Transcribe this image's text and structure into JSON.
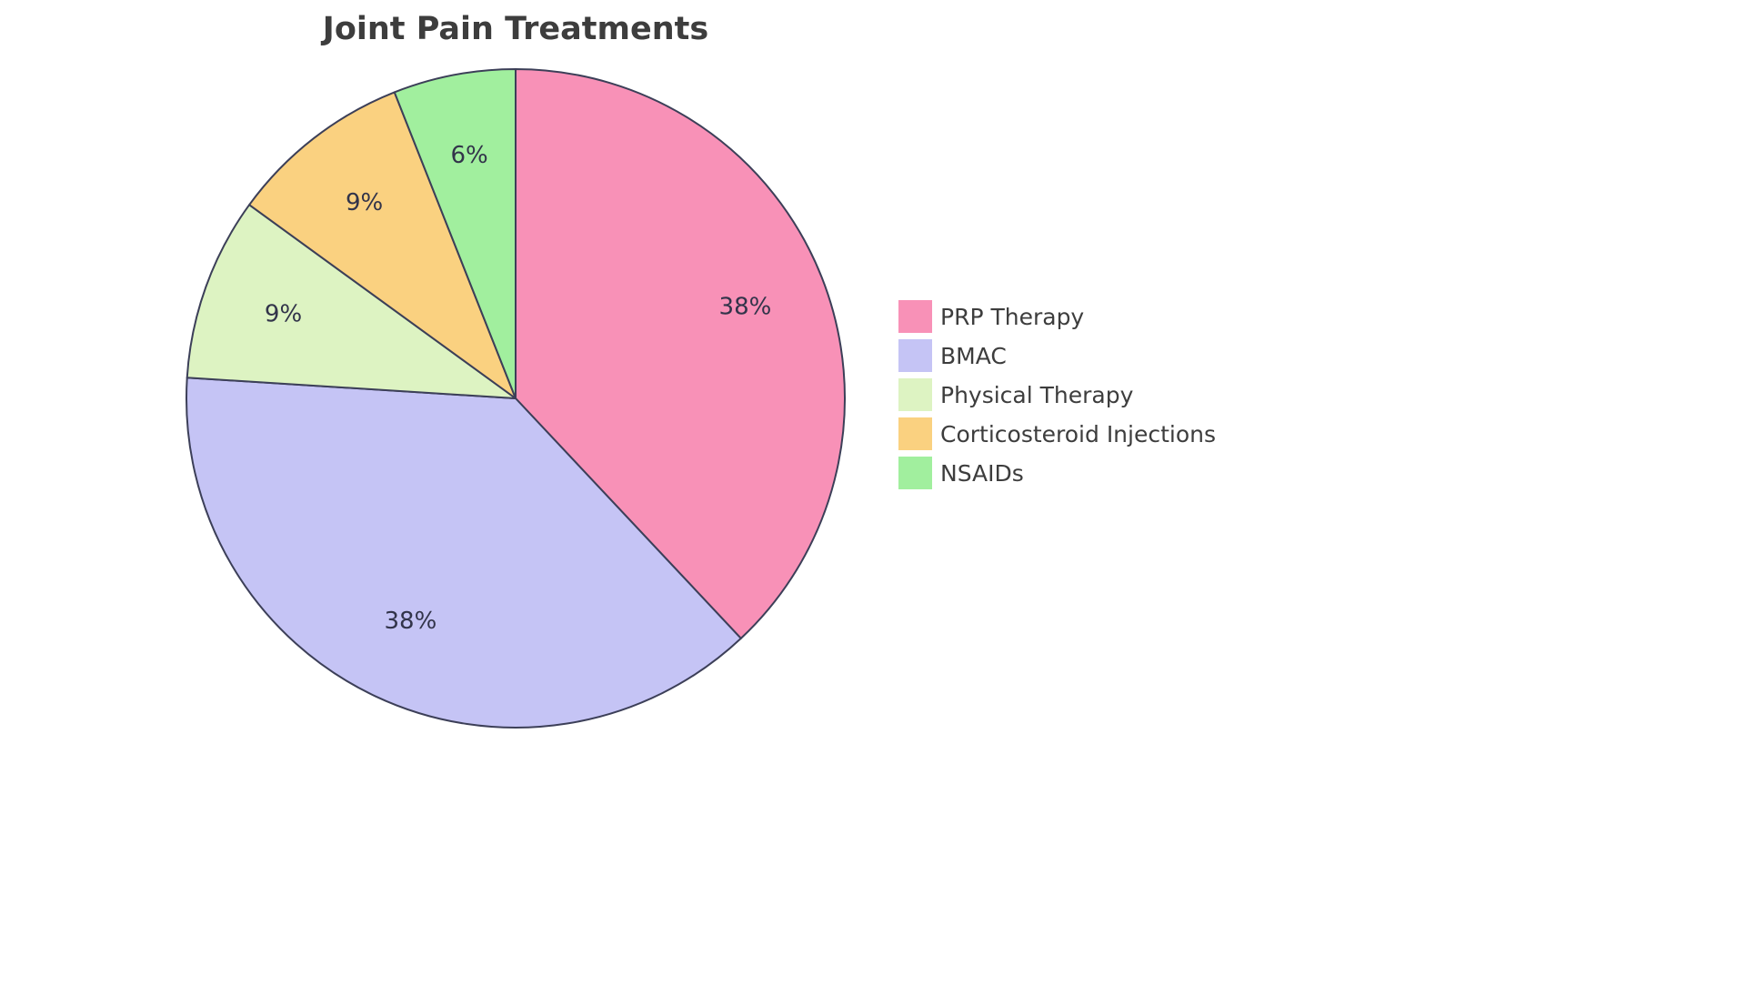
{
  "title": "Joint Pain Treatments",
  "chart_data": {
    "type": "pie",
    "title": "Joint Pain Treatments",
    "start_angle_deg": -90,
    "direction": "clockwise",
    "legend_position": "right",
    "grid": false,
    "slices": [
      {
        "label": "PRP Therapy",
        "value": 38,
        "percent_label": "38%",
        "color": "#F891B7"
      },
      {
        "label": "BMAC",
        "value": 38,
        "percent_label": "38%",
        "color": "#C5C4F5"
      },
      {
        "label": "Physical Therapy",
        "value": 9,
        "percent_label": "9%",
        "color": "#DDF3C2"
      },
      {
        "label": "Corticosteroid Injections",
        "value": 9,
        "percent_label": "9%",
        "color": "#FAD180"
      },
      {
        "label": "NSAIDs",
        "value": 6,
        "percent_label": "6%",
        "color": "#A1EF9E"
      }
    ],
    "stroke_color": "#3C3F58",
    "stroke_width": 2,
    "slice_label_color": "#32344A",
    "title_color": "#3d3d3d",
    "legend_text_color": "#3d3d3d"
  }
}
